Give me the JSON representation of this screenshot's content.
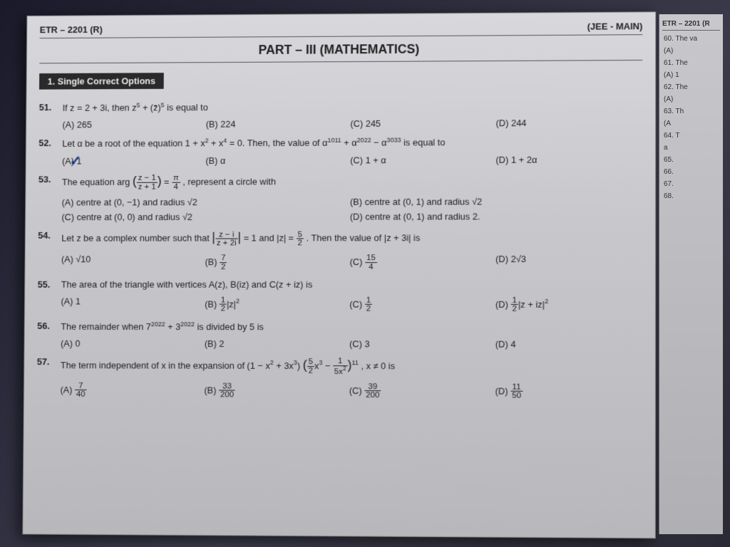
{
  "header": {
    "left": "ETR – 2201 (R)",
    "right": "(JEE - MAIN)"
  },
  "part_title": "PART – III (MATHEMATICS)",
  "section_label": "Single Correct Options",
  "questions": {
    "q51": {
      "num": "51.",
      "text_prefix": "If z = 2 + 3i, then z",
      "text_sup1": "5",
      "text_mid": " + (z̄)",
      "text_sup2": "5",
      "text_suffix": " is equal to",
      "opts": {
        "a": "(A) 265",
        "b": "(B) 224",
        "c": "(C) 245",
        "d": "(D) 244"
      }
    },
    "q52": {
      "num": "52.",
      "text_prefix": "Let α be a root of the equation 1 + x",
      "text_mid1": " + x",
      "text_mid2": " = 0. Then, the value of α",
      "text_mid3": " + α",
      "text_mid4": " − α",
      "text_suffix": " is equal to",
      "opts": {
        "a": "(A) 1",
        "b": "(B) α",
        "c": "(C) 1 + α",
        "d": "(D) 1 + 2α"
      }
    },
    "q53": {
      "num": "53.",
      "text_prefix": "The equation arg ",
      "frac1_num": "z − 1",
      "frac1_den": "z + 1",
      "text_mid": " = ",
      "frac2_num": "π",
      "frac2_den": "4",
      "text_suffix": ", represent a circle with",
      "opts": {
        "a": "(A) centre at (0, −1) and radius √2",
        "b": "(B) centre at (0, 1) and radius √2",
        "c": "(C) centre at (0, 0) and radius √2",
        "d": "(D) centre at (0, 1) and radius 2."
      }
    },
    "q54": {
      "num": "54.",
      "text_prefix": "Let z be a complex number such that ",
      "frac1_num": "z − i",
      "frac1_den": "z + 2i",
      "text_mid1": " = 1 and |z| = ",
      "frac2_num": "5",
      "frac2_den": "2",
      "text_suffix": ". Then the value of |z + 3i| is",
      "opts": {
        "a": "(A) √10",
        "b_prefix": "(B) ",
        "b_num": "7",
        "b_den": "2",
        "c_prefix": "(C) ",
        "c_num": "15",
        "c_den": "4",
        "d": "(D) 2√3"
      }
    },
    "q55": {
      "num": "55.",
      "text": "The area of the triangle with vertices A(z), B(iz) and C(z + iz) is",
      "opts": {
        "a": "(A) 1",
        "b_prefix": "(B) ",
        "b_num": "1",
        "b_den": "2",
        "b_suffix": "|z|",
        "c_prefix": "(C) ",
        "c_num": "1",
        "c_den": "2",
        "d_prefix": "(D) ",
        "d_num": "1",
        "d_den": "2",
        "d_suffix": "|z + iz|"
      }
    },
    "q56": {
      "num": "56.",
      "text_prefix": "The remainder when 7",
      "text_mid": " + 3",
      "text_suffix": " is divided by 5 is",
      "opts": {
        "a": "(A) 0",
        "b": "(B) 2",
        "c": "(C) 3",
        "d": "(D) 4"
      }
    },
    "q57": {
      "num": "57.",
      "text_prefix": "The term independent of x in the expansion of (1 − x",
      "text_mid1": " + 3x",
      "text_mid2": ")",
      "frac1_num": "5",
      "frac1_den": "2",
      "text_mid3": "x",
      "text_mid4": " − ",
      "frac2_num": "1",
      "frac2_den": "5x",
      "text_suffix": ", x ≠ 0 is",
      "opts": {
        "a_prefix": "(A) ",
        "a_num": "7",
        "a_den": "40",
        "b_prefix": "(B) ",
        "b_num": "33",
        "b_den": "200",
        "c_prefix": "(C) ",
        "c_num": "39",
        "c_den": "200",
        "d_prefix": "(D) ",
        "d_num": "11",
        "d_den": "50"
      }
    }
  },
  "side": {
    "header": "ETR – 2201 (R",
    "items": [
      "60.  The va",
      "        (A)",
      "61.  The",
      "        (A)  1",
      "62.  The",
      "        (A)",
      "63.  Th",
      "        (A",
      "64.  T",
      "        a",
      "65.",
      "",
      "66.",
      "",
      "67.",
      "",
      "68."
    ]
  },
  "exponents": {
    "q52_e1": "2",
    "q52_e2": "4",
    "q52_e3": "1011",
    "q52_e4": "2022",
    "q52_e5": "3033",
    "q55_b": "2",
    "q55_d": "2",
    "q56_e1": "2022",
    "q56_e2": "2022",
    "q57_e1": "2",
    "q57_e2": "3",
    "q57_e3": "3",
    "q57_e4": "11",
    "q57_e5": "2"
  }
}
